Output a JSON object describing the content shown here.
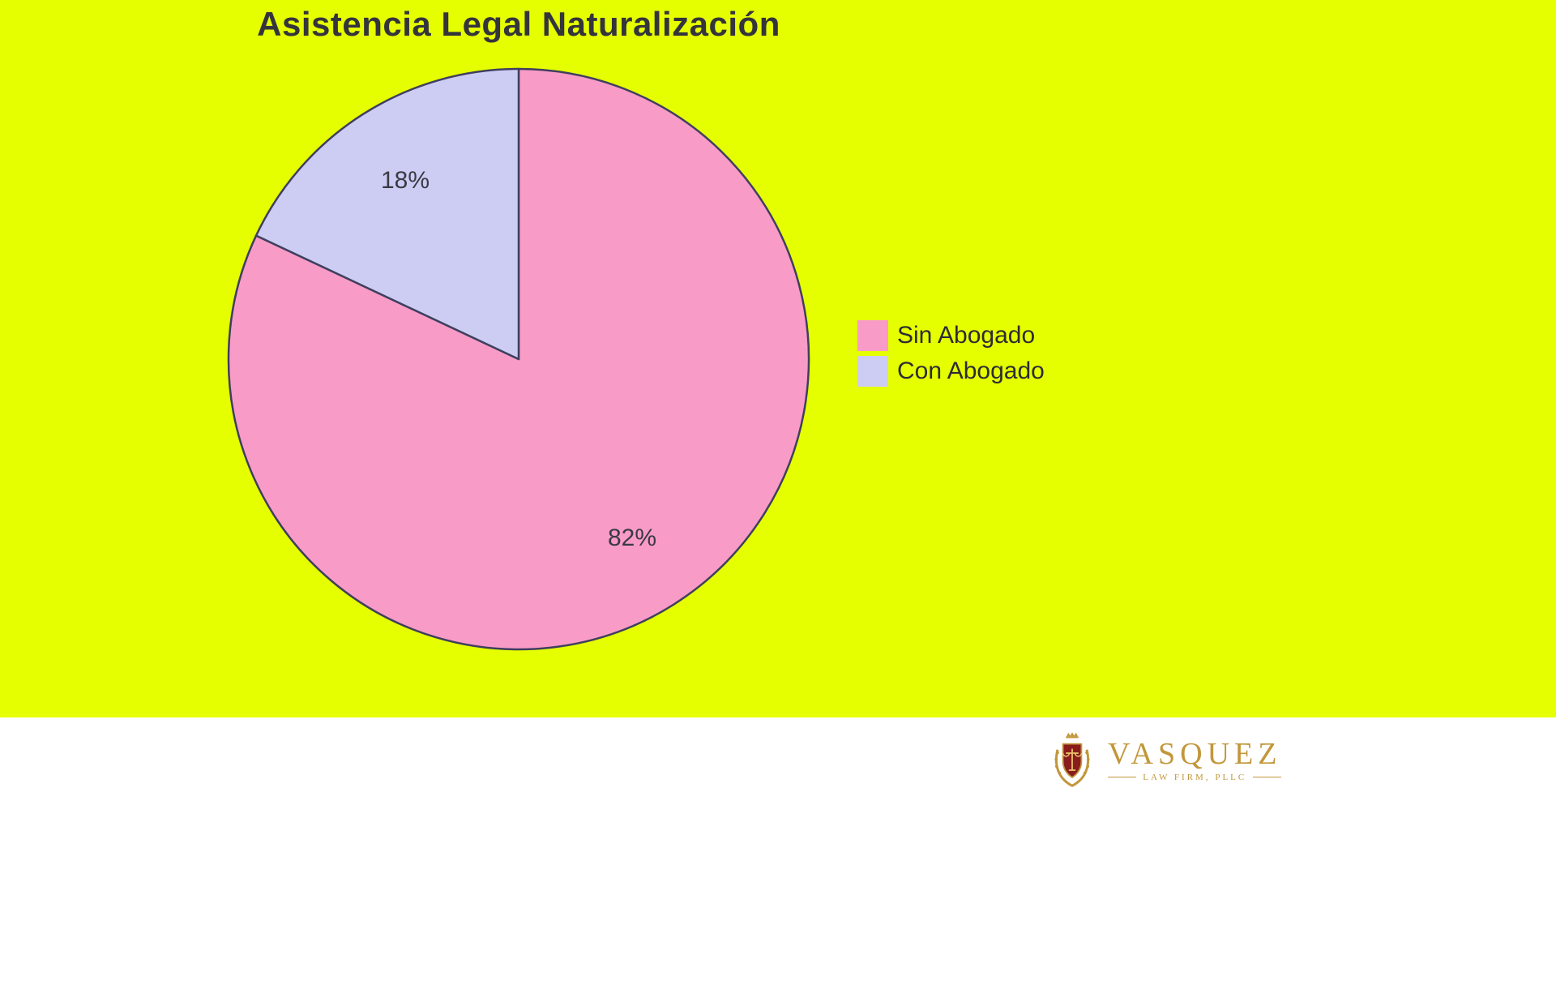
{
  "chart_data": {
    "type": "pie",
    "title": "Asistencia Legal Naturalización",
    "background": "#e6ff00",
    "stroke_color": "#3f3f5e",
    "direction": "clockwise",
    "start_angle": "12-oclock",
    "legend_position": "right",
    "slices": [
      {
        "label": "Sin Abogado",
        "value": 82,
        "pct_label": "82%",
        "color": "#f99bc7"
      },
      {
        "label": "Con Abogado",
        "value": 18,
        "pct_label": "18%",
        "color": "#cdcdf4"
      }
    ]
  },
  "footer": {
    "brand": "VASQUEZ",
    "brand_sub": "LAW FIRM, PLLC",
    "logo_gold": "#c2973b",
    "logo_shield": "#8a1c1c"
  }
}
